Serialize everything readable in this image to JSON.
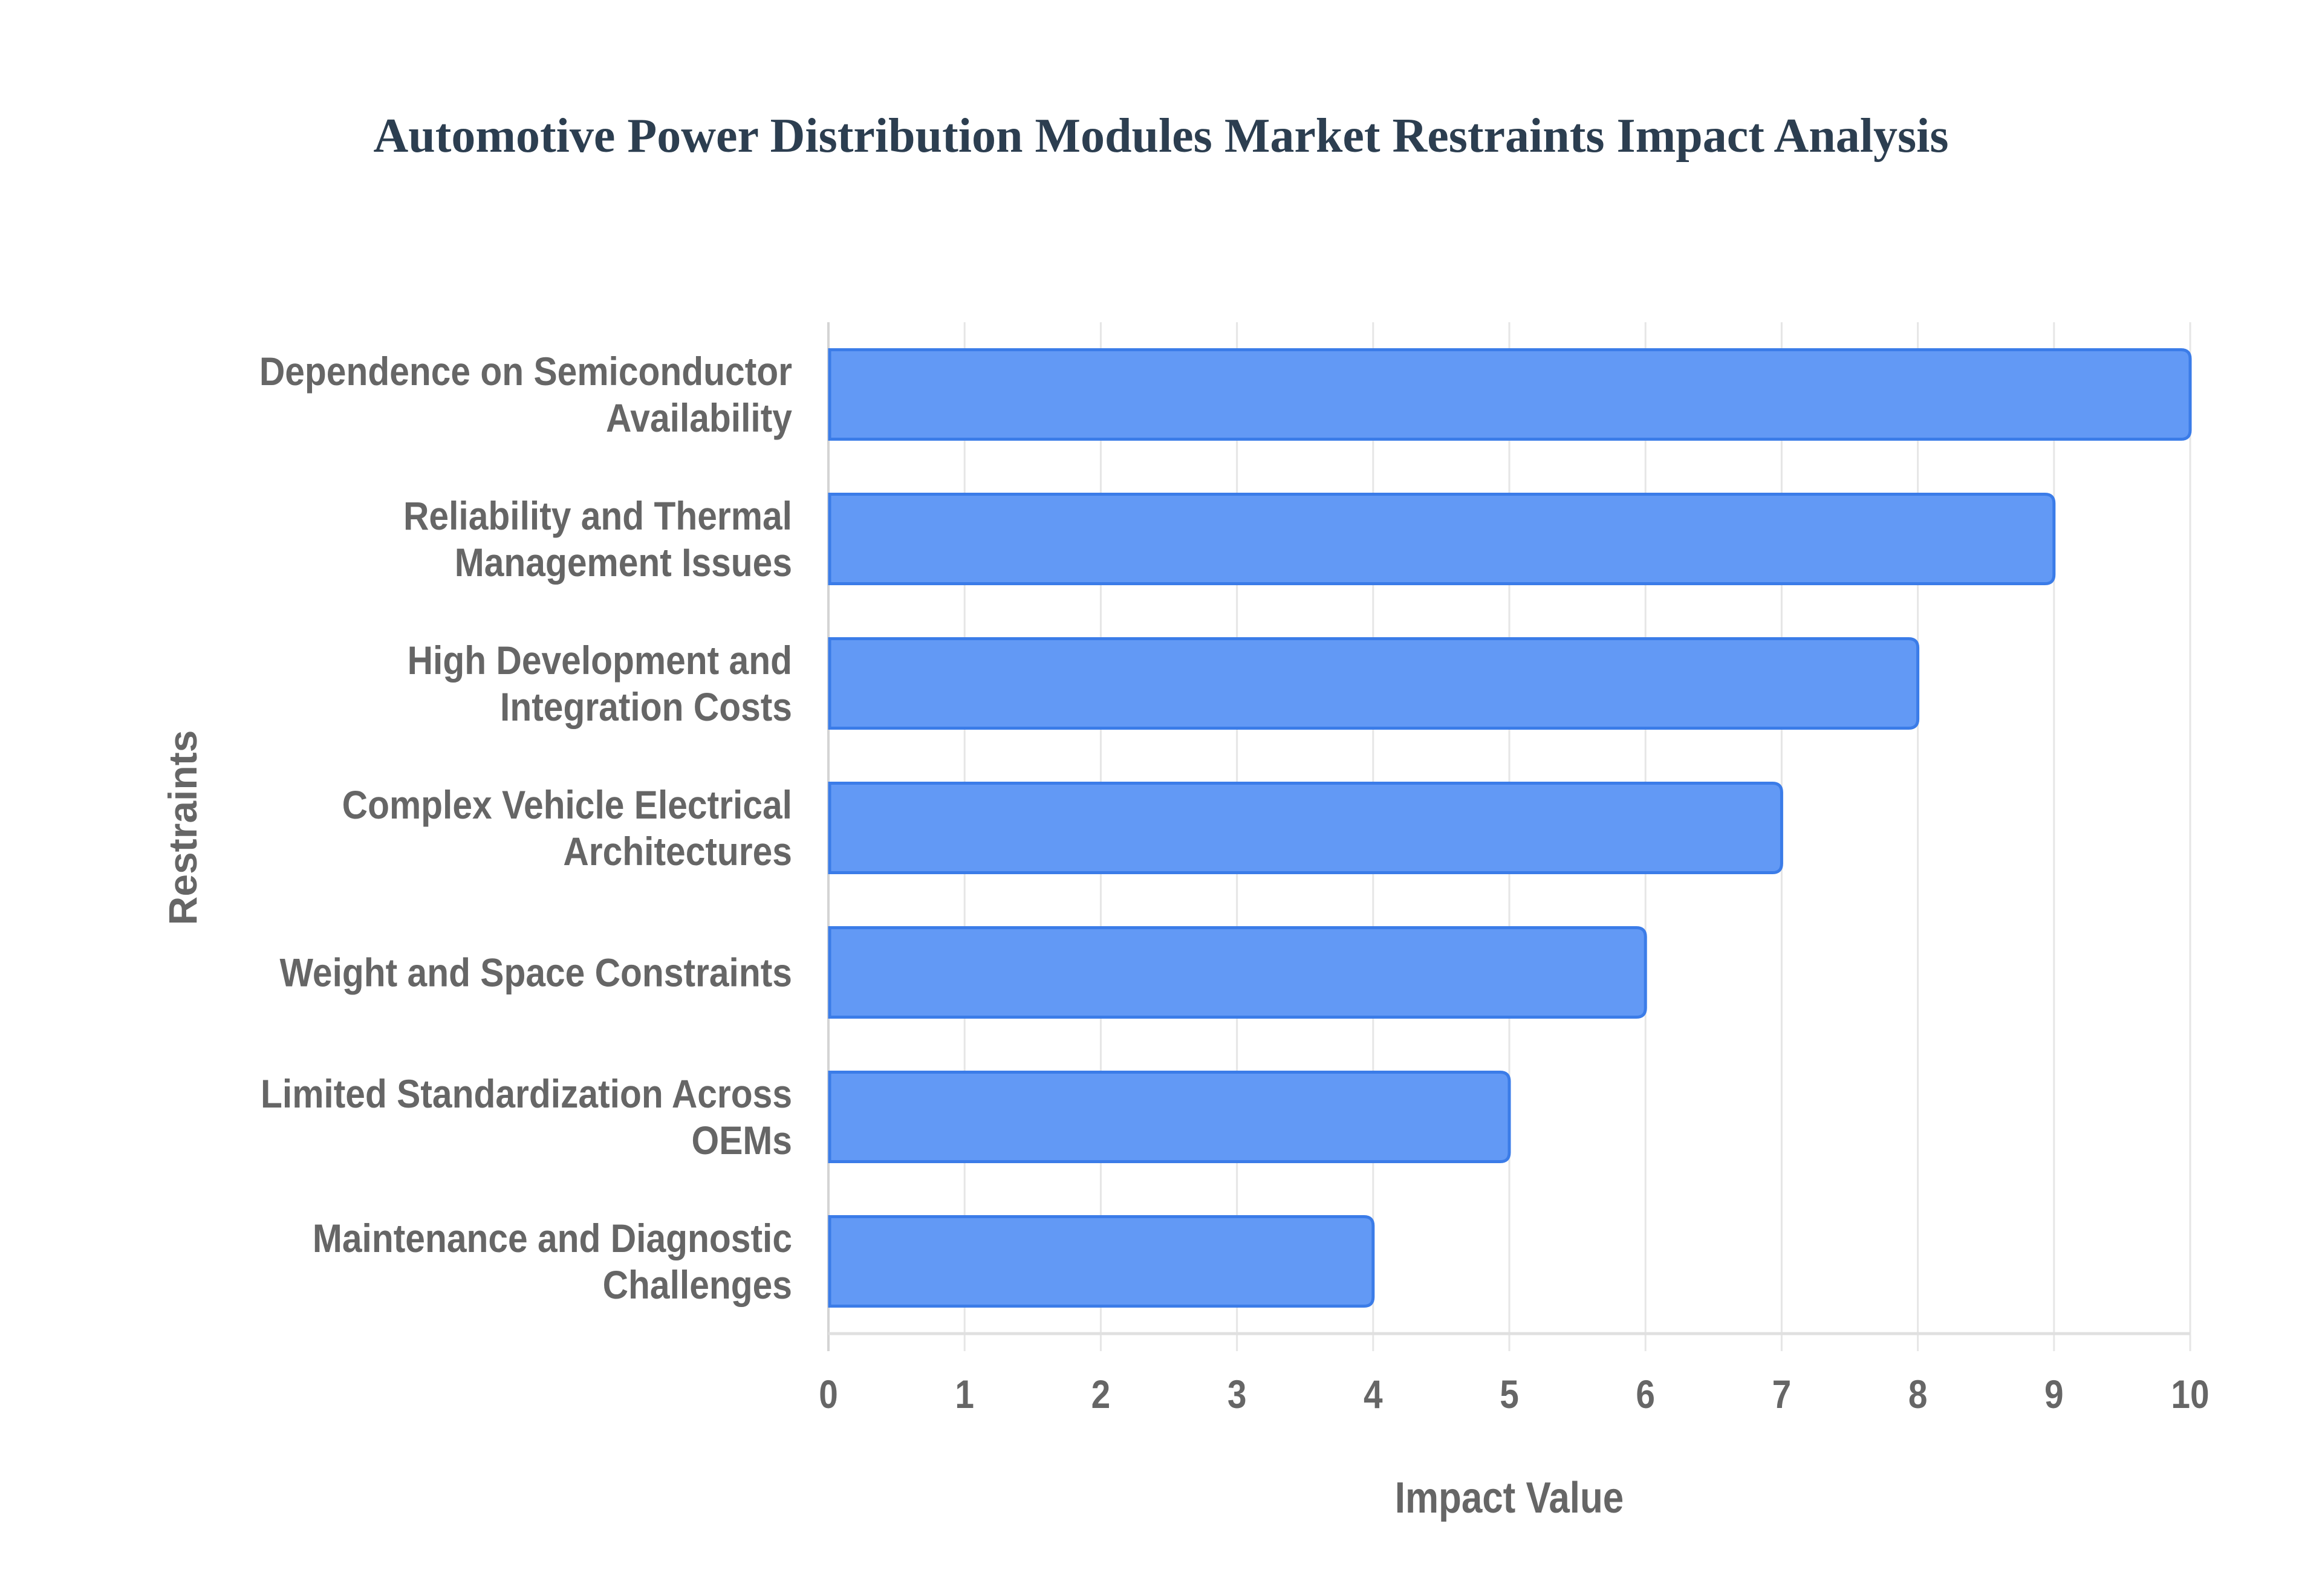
{
  "title": "Automotive Power Distribution Modules Market Restraints Impact Analysis",
  "colors": {
    "title": "#2c3e50",
    "bar_fill": "#6299f5",
    "bar_border": "#3b7ce8",
    "grid": "#e6e6e6",
    "axis_text": "#666666"
  },
  "chart_data": {
    "type": "bar",
    "orientation": "horizontal",
    "title": "Automotive Power Distribution Modules Market Restraints Impact Analysis",
    "xlabel": "Impact Value",
    "ylabel": "Restraints",
    "xlim": [
      0,
      10
    ],
    "xticks": [
      "0",
      "1",
      "2",
      "3",
      "4",
      "5",
      "6",
      "7",
      "8",
      "9",
      "10"
    ],
    "grid": true,
    "legend": null,
    "categories": [
      "Dependence on Semiconductor Availability",
      "Reliability and Thermal Management Issues",
      "High Development and Integration Costs",
      "Complex Vehicle Electrical Architectures",
      "Weight and Space Constraints",
      "Limited Standardization Across OEMs",
      "Maintenance and Diagnostic Challenges"
    ],
    "category_lines": [
      [
        "Dependence on Semiconductor",
        "Availability"
      ],
      [
        "Reliability and Thermal",
        "Management Issues"
      ],
      [
        "High Development and",
        "Integration Costs"
      ],
      [
        "Complex Vehicle Electrical",
        "Architectures"
      ],
      [
        "Weight and Space Constraints"
      ],
      [
        "Limited Standardization Across",
        "OEMs"
      ],
      [
        "Maintenance and Diagnostic",
        "Challenges"
      ]
    ],
    "values": [
      10,
      9,
      8,
      7,
      6,
      5,
      4
    ]
  }
}
